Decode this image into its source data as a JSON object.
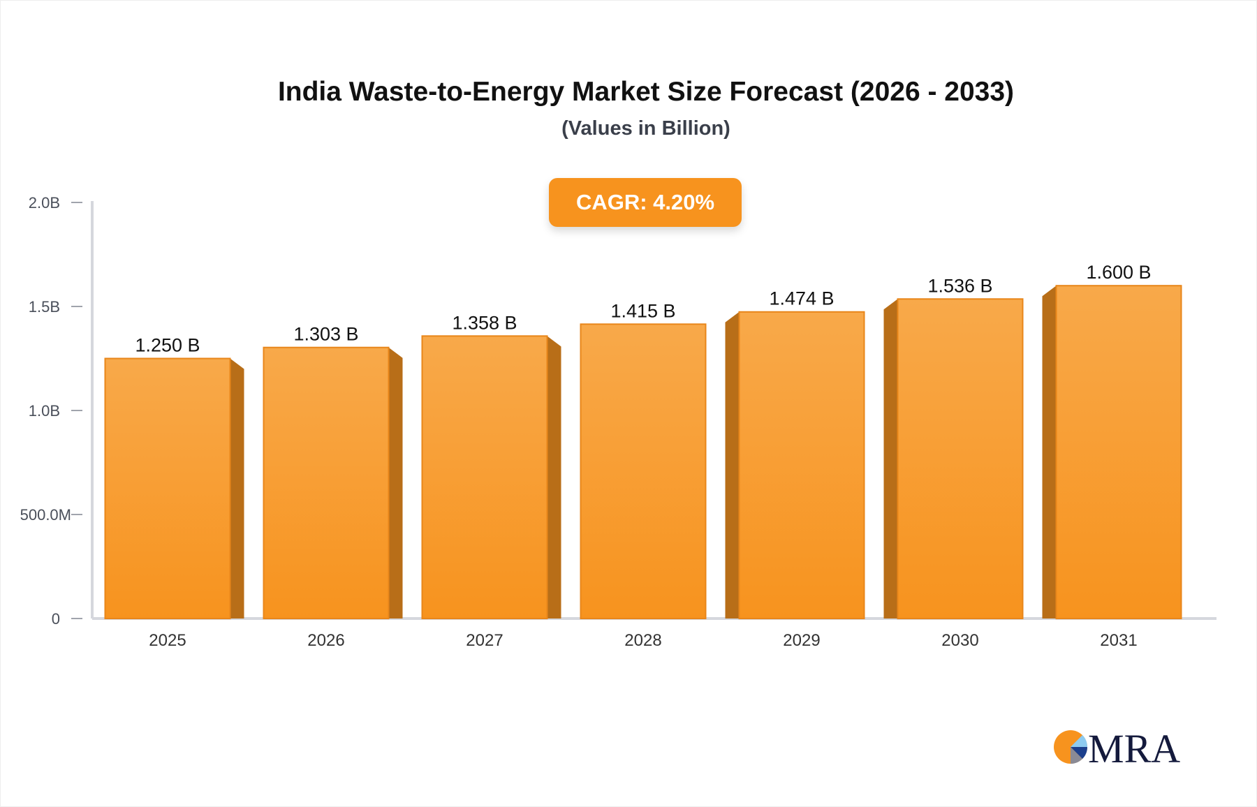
{
  "chart_data": {
    "type": "bar",
    "title": "India Waste-to-Energy Market Size Forecast (2026 - 2033)",
    "subtitle": "(Values in Billion)",
    "annotation": "CAGR: 4.20%",
    "categories": [
      "2025",
      "2026",
      "2027",
      "2028",
      "2029",
      "2030",
      "2031"
    ],
    "values": [
      1.25,
      1.303,
      1.358,
      1.415,
      1.474,
      1.536,
      1.6
    ],
    "data_labels": [
      "1.250 B",
      "1.303 B",
      "1.358 B",
      "1.415 B",
      "1.474 B",
      "1.536 B",
      "1.600 B"
    ],
    "ylim": [
      0,
      2.0
    ],
    "yticks": [
      0,
      0.5,
      1.0,
      1.5,
      2.0
    ],
    "ytick_labels": [
      "0",
      "500.0M",
      "1.0B",
      "1.5B",
      "2.0B"
    ],
    "xlabel": "",
    "ylabel": "",
    "grid": false,
    "colors": {
      "bar_front": "#f7931e",
      "bar_top": "#f8a94a",
      "bar_side": "#b86e18",
      "axis": "#d5d7dd",
      "badge": "#f7931e"
    }
  },
  "logo": {
    "text": "MRA"
  }
}
